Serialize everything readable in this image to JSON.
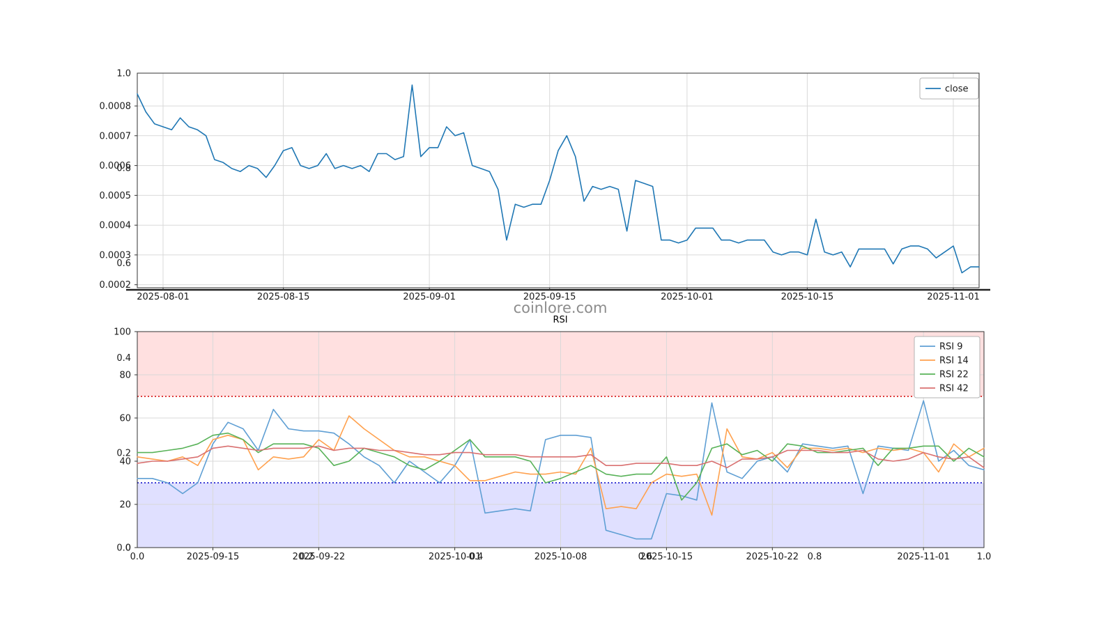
{
  "watermark": "coinlore.com",
  "figure_axes": {
    "left_ticks": [
      {
        "f": 1.0,
        "label": "1.0"
      },
      {
        "f": 0.8,
        "label": "0.8"
      },
      {
        "f": 0.6,
        "label": "0.6"
      },
      {
        "f": 0.4,
        "label": "0.4"
      },
      {
        "f": 0.2,
        "label": "0.2"
      },
      {
        "f": 0.0,
        "label": "0.0"
      }
    ],
    "bottom_ticks": [
      {
        "f": 0.0,
        "label": "0.0"
      },
      {
        "f": 0.2,
        "label": "0.2"
      },
      {
        "f": 0.4,
        "label": "0.4"
      },
      {
        "f": 0.6,
        "label": "0.6"
      },
      {
        "f": 0.8,
        "label": "0.8"
      },
      {
        "f": 1.0,
        "label": "1.0"
      }
    ]
  },
  "chart_data": [
    {
      "type": "line",
      "title": "",
      "ylim": [
        0.00019,
        0.00091
      ],
      "grid": true,
      "legend_position": "upper right",
      "yticks": [
        {
          "v": 0.0002,
          "label": "0.0002"
        },
        {
          "v": 0.0003,
          "label": "0.0003"
        },
        {
          "v": 0.0004,
          "label": "0.0004"
        },
        {
          "v": 0.0005,
          "label": "0.0005"
        },
        {
          "v": 0.0006,
          "label": "0.0006"
        },
        {
          "v": 0.0007,
          "label": "0.0007"
        },
        {
          "v": 0.0008,
          "label": "0.0008"
        }
      ],
      "xticks": [
        {
          "f": 0.0306,
          "label": "2025-08-01"
        },
        {
          "f": 0.1735,
          "label": "2025-08-15"
        },
        {
          "f": 0.3469,
          "label": "2025-09-01"
        },
        {
          "f": 0.4898,
          "label": "2025-09-15"
        },
        {
          "f": 0.6531,
          "label": "2025-10-01"
        },
        {
          "f": 0.7959,
          "label": "2025-10-15"
        },
        {
          "f": 0.9694,
          "label": "2025-11-01"
        }
      ],
      "series": [
        {
          "name": "close",
          "color": "#1f77b4",
          "values": [
            0.00084,
            0.00078,
            0.00074,
            0.00073,
            0.00072,
            0.00076,
            0.00073,
            0.00072,
            0.0007,
            0.00062,
            0.00061,
            0.00059,
            0.00058,
            0.0006,
            0.00059,
            0.00056,
            0.0006,
            0.00065,
            0.00066,
            0.0006,
            0.00059,
            0.0006,
            0.00064,
            0.00059,
            0.0006,
            0.00059,
            0.0006,
            0.00058,
            0.00064,
            0.00064,
            0.00062,
            0.00063,
            0.00087,
            0.00063,
            0.00066,
            0.00066,
            0.00073,
            0.0007,
            0.00071,
            0.0006,
            0.00059,
            0.00058,
            0.00052,
            0.00035,
            0.00047,
            0.00046,
            0.00047,
            0.00047,
            0.00055,
            0.00065,
            0.0007,
            0.00063,
            0.00048,
            0.00053,
            0.00052,
            0.00053,
            0.00052,
            0.00038,
            0.00055,
            0.00054,
            0.00053,
            0.00035,
            0.00035,
            0.00034,
            0.00035,
            0.00039,
            0.00039,
            0.00039,
            0.00035,
            0.00035,
            0.00034,
            0.00035,
            0.00035,
            0.00035,
            0.00031,
            0.0003,
            0.00031,
            0.00031,
            0.0003,
            0.00042,
            0.00031,
            0.0003,
            0.00031,
            0.00026,
            0.00032,
            0.00032,
            0.00032,
            0.00032,
            0.00027,
            0.00032,
            0.00033,
            0.00033,
            0.00032,
            0.00029,
            0.00031,
            0.00033,
            0.00024,
            0.00026,
            0.00026
          ]
        }
      ]
    },
    {
      "type": "line",
      "title": "RSI",
      "ylim": [
        0,
        100
      ],
      "grid": true,
      "legend_position": "upper right",
      "yticks": [
        {
          "v": 0,
          "label": "0"
        },
        {
          "v": 20,
          "label": "20"
        },
        {
          "v": 40,
          "label": "40"
        },
        {
          "v": 60,
          "label": "60"
        },
        {
          "v": 80,
          "label": "80"
        },
        {
          "v": 100,
          "label": "100"
        }
      ],
      "xticks": [
        {
          "f": 0.0893,
          "label": "2025-09-15"
        },
        {
          "f": 0.2143,
          "label": "2025-09-22"
        },
        {
          "f": 0.375,
          "label": "2025-10-01"
        },
        {
          "f": 0.5,
          "label": "2025-10-08"
        },
        {
          "f": 0.625,
          "label": "2025-10-15"
        },
        {
          "f": 0.75,
          "label": "2025-10-22"
        },
        {
          "f": 0.9286,
          "label": "2025-11-01"
        }
      ],
      "bands": [
        {
          "from": 70,
          "to": 100,
          "color": "rgba(255,0,0,0.12)"
        },
        {
          "from": 0,
          "to": 30,
          "color": "rgba(0,0,255,0.12)"
        }
      ],
      "hlines": [
        {
          "y": 70,
          "color": "#d40000"
        },
        {
          "y": 30,
          "color": "#0000c8"
        }
      ],
      "series": [
        {
          "name": "RSI 9",
          "color": "#5f9fd4",
          "values": [
            32,
            32,
            30,
            25,
            30,
            48,
            58,
            55,
            45,
            64,
            55,
            54,
            54,
            53,
            48,
            42,
            38,
            30,
            40,
            35,
            30,
            38,
            50,
            16,
            17,
            18,
            17,
            50,
            52,
            52,
            51,
            8,
            6,
            4,
            4,
            25,
            24,
            22,
            67,
            35,
            32,
            40,
            42,
            35,
            48,
            47,
            46,
            47,
            25,
            47,
            46,
            45,
            68,
            40,
            45,
            38,
            36
          ]
        },
        {
          "name": "RSI 14",
          "color": "#ffa14e",
          "values": [
            42,
            41,
            40,
            42,
            38,
            50,
            52,
            50,
            36,
            42,
            41,
            42,
            50,
            45,
            61,
            55,
            50,
            45,
            42,
            42,
            40,
            38,
            31,
            31,
            33,
            35,
            34,
            34,
            35,
            34,
            46,
            18,
            19,
            18,
            30,
            34,
            33,
            34,
            15,
            55,
            42,
            41,
            44,
            37,
            46,
            46,
            45,
            46,
            44,
            46,
            45,
            46,
            44,
            35,
            48,
            42,
            46
          ]
        },
        {
          "name": "RSI 22",
          "color": "#58b258",
          "values": [
            44,
            44,
            45,
            46,
            48,
            52,
            53,
            50,
            44,
            48,
            48,
            48,
            46,
            38,
            40,
            46,
            44,
            42,
            38,
            36,
            40,
            45,
            50,
            42,
            42,
            42,
            40,
            30,
            32,
            35,
            38,
            34,
            33,
            34,
            34,
            42,
            22,
            30,
            46,
            48,
            43,
            45,
            40,
            48,
            47,
            44,
            44,
            45,
            46,
            38,
            46,
            46,
            47,
            47,
            40,
            46,
            42
          ]
        },
        {
          "name": "RSI 42",
          "color": "#d97070",
          "values": [
            39,
            40,
            40,
            41,
            42,
            46,
            47,
            46,
            45,
            46,
            46,
            46,
            47,
            45,
            46,
            46,
            45,
            45,
            44,
            43,
            43,
            44,
            44,
            43,
            43,
            43,
            42,
            42,
            42,
            42,
            43,
            38,
            38,
            39,
            39,
            39,
            38,
            38,
            40,
            37,
            41,
            41,
            42,
            45,
            45,
            45,
            44,
            44,
            45,
            41,
            40,
            41,
            44,
            42,
            41,
            42,
            37
          ]
        }
      ]
    }
  ]
}
